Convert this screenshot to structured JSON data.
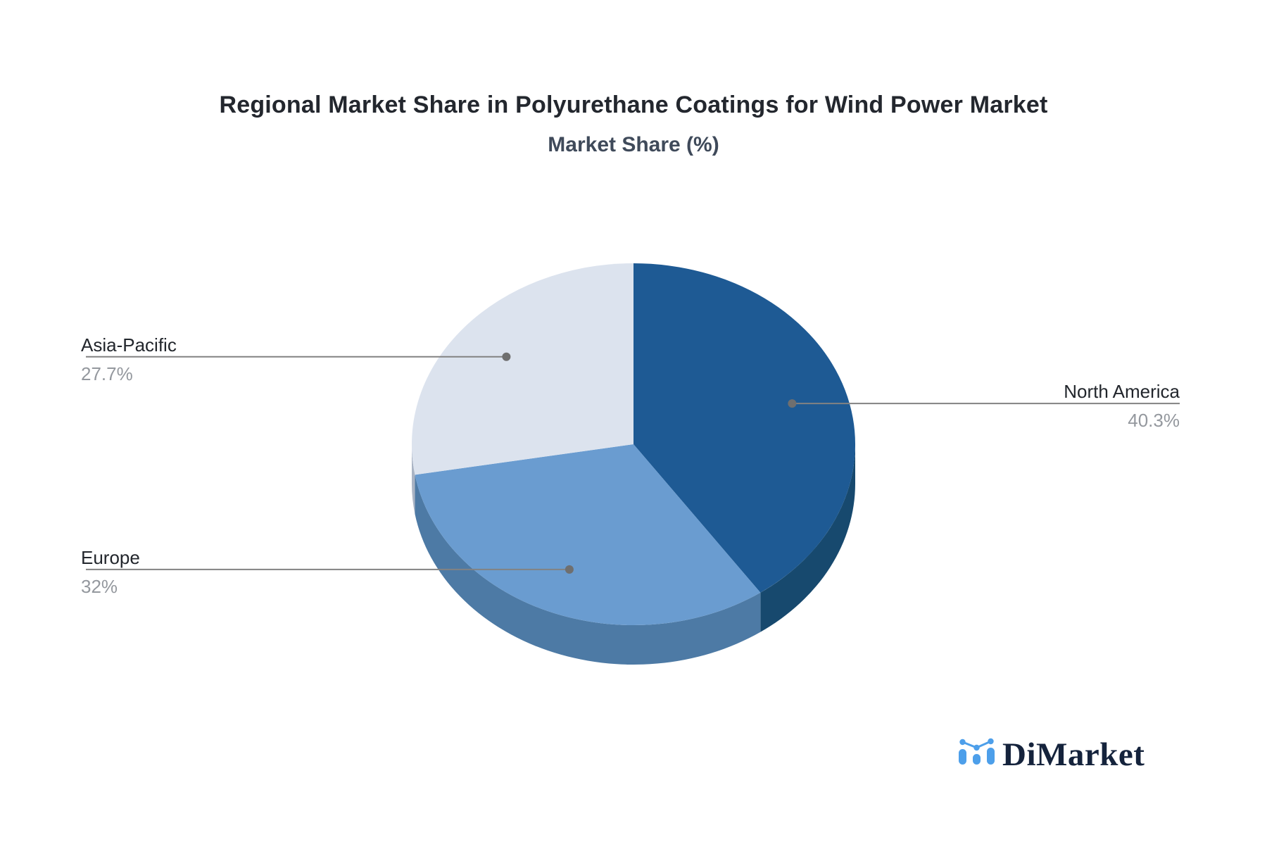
{
  "header": {
    "title": "Regional Market Share in Polyurethane Coatings for Wind Power Market",
    "subtitle": "Market Share (%)"
  },
  "chart_data": {
    "type": "pie",
    "style": "3d",
    "title": "Regional Market Share in Polyurethane Coatings for Wind Power Market",
    "subtitle": "Market Share (%)",
    "labels": [
      "North America",
      "Europe",
      "Asia-Pacific"
    ],
    "values": [
      40.3,
      32,
      27.7
    ],
    "value_labels": [
      "40.3%",
      "32%",
      "27.7%"
    ],
    "slice_colors": [
      "#1e5a94",
      "#6a9cd0",
      "#dce3ee"
    ],
    "slice_side_colors": [
      "#17496e",
      "#4d7aa5",
      "#aab4c4"
    ],
    "start_angle_deg": 90,
    "direction": "clockwise",
    "legend_position": "none",
    "label_layout": "callout-lines"
  },
  "footer": {
    "brand_text": "DiMarket",
    "brand_icon": "bar-chart-trend-icon",
    "brand_icon_color": "#4d9fea",
    "brand_text_color": "#15233c"
  },
  "theme": {
    "background": "#ffffff",
    "title_color": "#23272e",
    "subtitle_color": "#3f4a5a",
    "label_name_color": "#22262c",
    "label_pct_color": "#94989e",
    "leader_line_color": "#828282",
    "leader_dot_color": "#6f6f6f"
  }
}
